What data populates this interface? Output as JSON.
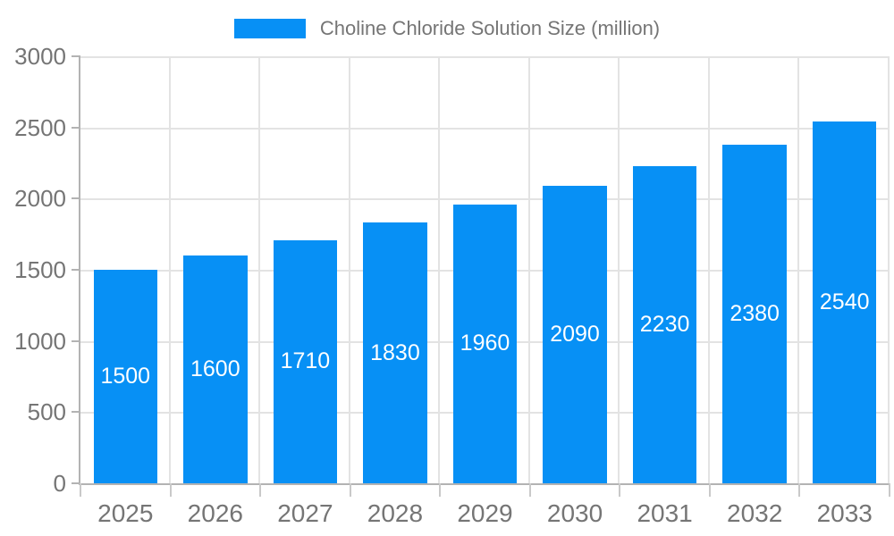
{
  "legend": {
    "label": "Choline Chloride Solution Size (million)",
    "swatch_color": "#0790f5"
  },
  "chart_data": {
    "type": "bar",
    "title": "Choline Chloride Solution Size (million)",
    "series_name": "Choline Chloride Solution Size (million)",
    "categories": [
      "2025",
      "2026",
      "2027",
      "2028",
      "2029",
      "2030",
      "2031",
      "2032",
      "2033"
    ],
    "values": [
      1500,
      1600,
      1710,
      1830,
      1960,
      2090,
      2230,
      2380,
      2540
    ],
    "xlabel": "",
    "ylabel": "",
    "ylim": [
      0,
      3000
    ],
    "yticks": [
      0,
      500,
      1000,
      1500,
      2000,
      2500,
      3000
    ],
    "grid": true,
    "legend_position": "top-center",
    "bar_label_position": "center",
    "colors": {
      "bar": "#0790f5",
      "bar_label": "#ffffff",
      "axis_line": "#b3b3b3",
      "grid_line": "#e3e3e3",
      "tick": "#b3b3b3",
      "text": "#757575",
      "background": "#ffffff"
    }
  }
}
